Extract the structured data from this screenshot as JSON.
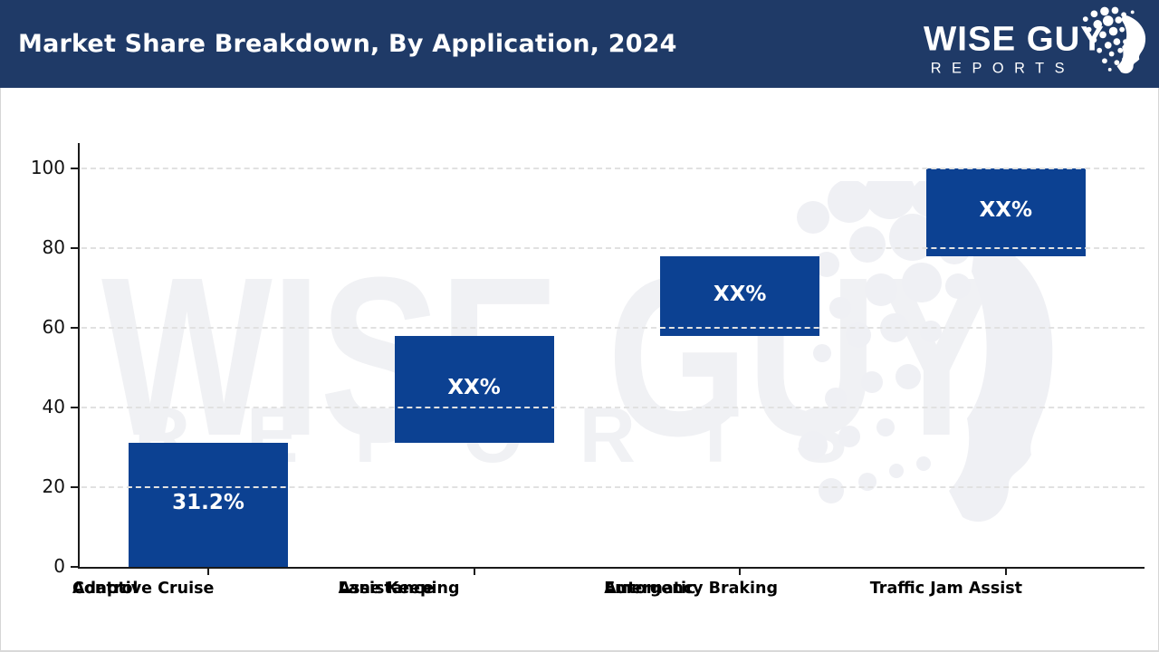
{
  "header": {
    "title": "Market Share Breakdown, By Application, 2024",
    "bg_color": "#1f3a67",
    "logo": {
      "wise_guy": "WISE GUY",
      "reports": "R E P O R T S"
    }
  },
  "watermark": {
    "wise_guy": "WISE GUY",
    "reports": "REPORTS"
  },
  "chart_data": {
    "type": "bar",
    "variant": "waterfall",
    "title": "Market Share Breakdown, By Application, 2024",
    "categories": [
      "Adaptive Cruise Control",
      "Lane Keeping Assistance",
      "Automatic Emergency Braking",
      "Traffic Jam Assist"
    ],
    "category_tick_lines": [
      [
        "Adaptive Cruise",
        "Control"
      ],
      [
        "Lane Keeping",
        "Assistance"
      ],
      [
        "Automatic",
        "Emergency Braking"
      ],
      [
        "Traffic Jam Assist"
      ]
    ],
    "series": [
      {
        "name": "Market Share",
        "segments": [
          {
            "category": "Adaptive Cruise Control",
            "start": 0,
            "end": 31.2,
            "label": "31.2%"
          },
          {
            "category": "Lane Keeping Assistance",
            "start": 31.2,
            "end": 58,
            "label": "XX%"
          },
          {
            "category": "Automatic Emergency Braking",
            "start": 58,
            "end": 78,
            "label": "XX%"
          },
          {
            "category": "Traffic Jam Assist",
            "start": 78,
            "end": 100,
            "label": "XX%"
          }
        ]
      }
    ],
    "ylim": [
      0,
      105
    ],
    "yticks": [
      0,
      20,
      40,
      60,
      80,
      100
    ],
    "grid": {
      "horizontal": true,
      "style": "dashed",
      "color": "#e1e1e1"
    },
    "legend": "none",
    "xlabel": "",
    "ylabel": "",
    "bar_color": "#0c4192",
    "bar_label_color": "#ffffff",
    "axis_color": "#1a1a1a",
    "tick_label_color": "#111111"
  }
}
